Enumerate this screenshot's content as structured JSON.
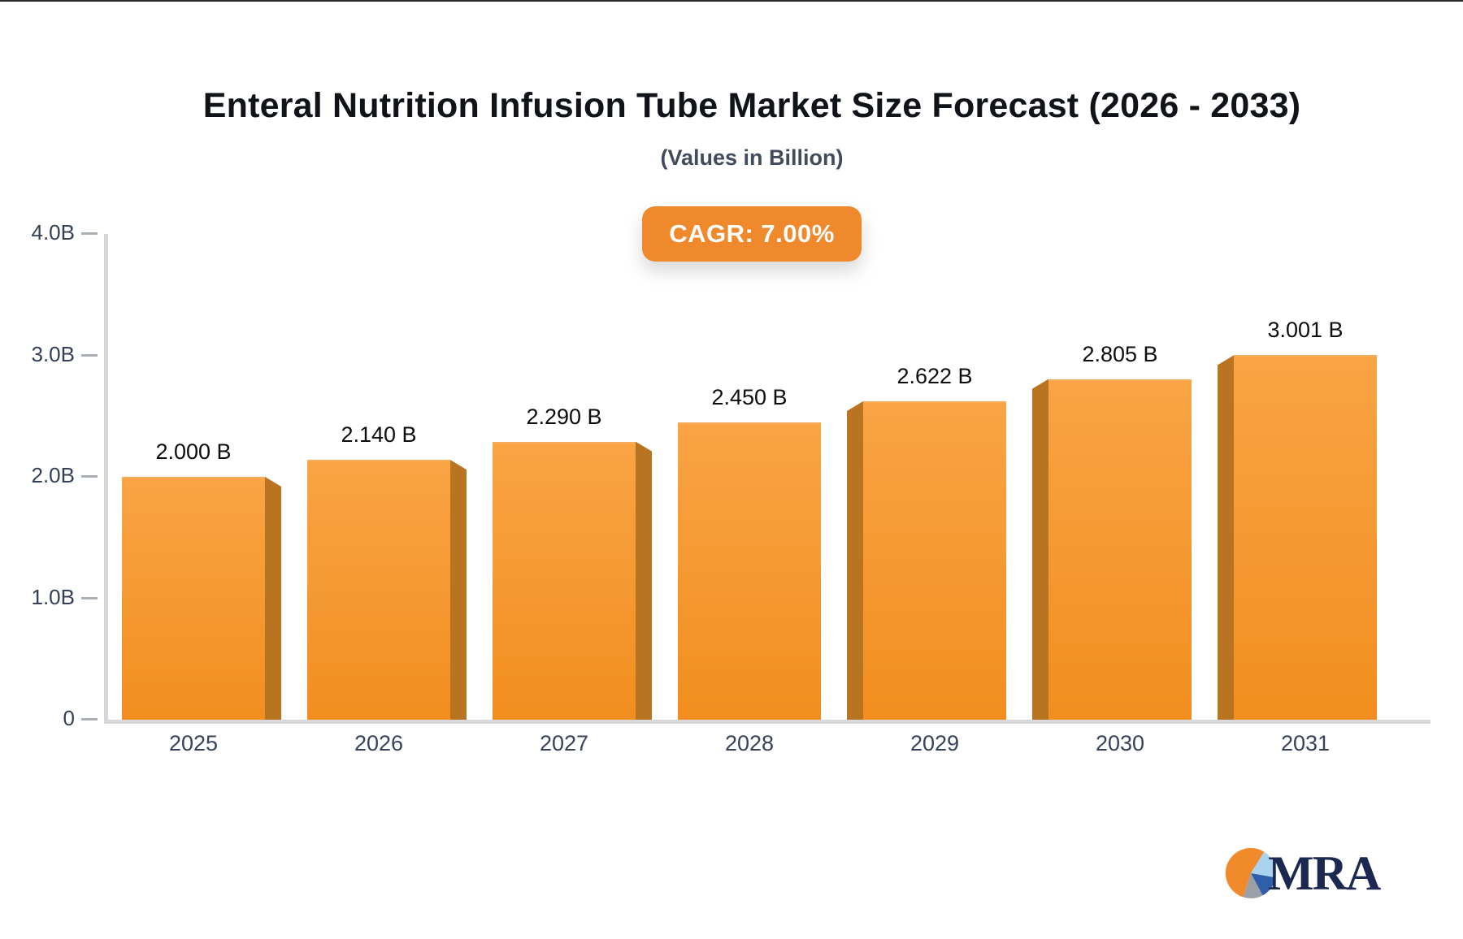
{
  "window": {
    "top_border_color": "#26282b",
    "background": "#ffffff"
  },
  "header": {
    "title": "Enteral Nutrition Infusion Tube Market Size Forecast (2026 - 2033)",
    "subtitle": "(Values in Billion)",
    "title_color": "#101318",
    "subtitle_color": "#414B5C"
  },
  "cagr_badge": {
    "label": "CAGR: 7.00%",
    "background": "#F0892C",
    "text_color": "#FFFFFF"
  },
  "chart_data": {
    "type": "bar",
    "title": "Enteral Nutrition Infusion Tube Market Size Forecast (2026 - 2033)",
    "subtitle": "(Values in Billion)",
    "annotation": "CAGR: 7.00%",
    "categories": [
      "2025",
      "2026",
      "2027",
      "2028",
      "2029",
      "2030",
      "2031"
    ],
    "values": [
      2.0,
      2.14,
      2.29,
      2.45,
      2.622,
      2.805,
      3.001
    ],
    "value_labels": [
      "2.000 B",
      "2.140 B",
      "2.290 B",
      "2.450 B",
      "2.622 B",
      "2.805 B",
      "3.001 B"
    ],
    "ylim": [
      0,
      4
    ],
    "yticks": [
      {
        "value": 0,
        "label": "0"
      },
      {
        "value": 1,
        "label": "1.0B"
      },
      {
        "value": 2,
        "label": "2.0B"
      },
      {
        "value": 3,
        "label": "3.0B"
      },
      {
        "value": 4,
        "label": "4.0B"
      }
    ],
    "grid": false,
    "legend": false,
    "bar_style": "3d-bevel, bevel faces away from chart center, center bar flat",
    "colors": {
      "bar_top": "#F9A445",
      "bar_bottom": "#F28E1E",
      "bar_side": "#B87421",
      "axis_line": "#D7D7DB",
      "tick_dash": "#A9AFB8",
      "tick_label": "#333F53",
      "category_label": "#36415A",
      "value_label": "#0D0D0F"
    }
  },
  "logo": {
    "text": "MRA",
    "text_color": "#1B2850",
    "pie": {
      "orange": "#F18A2B",
      "light_blue": "#A9D3EE",
      "dark_blue": "#2F5FA8",
      "gray": "#9B9FA6"
    }
  }
}
